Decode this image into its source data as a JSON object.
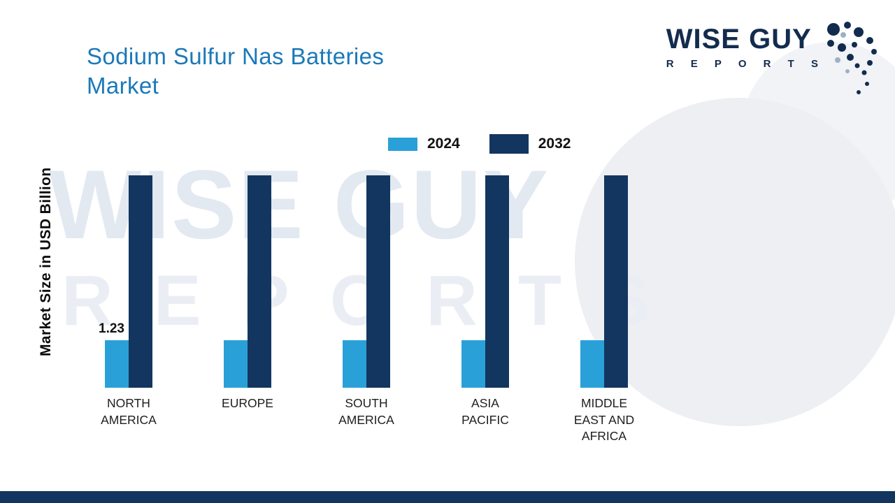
{
  "logo": {
    "line1": "WISE GUY",
    "line2": "R E P O R T S"
  },
  "watermark": {
    "line1": "WISE GUY",
    "line2": "REPORTS"
  },
  "chart_data": {
    "type": "bar",
    "title": "Sodium Sulfur  Nas  Batteries Market",
    "xlabel": "",
    "ylabel": "Market Size in USD Billion",
    "ylim": [
      0,
      5.5
    ],
    "grid": false,
    "legend_position": "top",
    "categories": [
      "NORTH AMERICA",
      "EUROPE",
      "SOUTH AMERICA",
      "ASIA PACIFIC",
      "MIDDLE EAST AND AFRICA"
    ],
    "series": [
      {
        "name": "2024",
        "color": "#2aa0d8",
        "values": [
          1.23,
          1.23,
          1.23,
          1.23,
          1.23
        ],
        "data_labels": [
          "1.23",
          "",
          "",
          "",
          ""
        ]
      },
      {
        "name": "2032",
        "color": "#12365f",
        "values": [
          5.5,
          5.5,
          5.5,
          5.5,
          5.5
        ],
        "data_labels": [
          "",
          "",
          "",
          "",
          ""
        ]
      }
    ]
  }
}
